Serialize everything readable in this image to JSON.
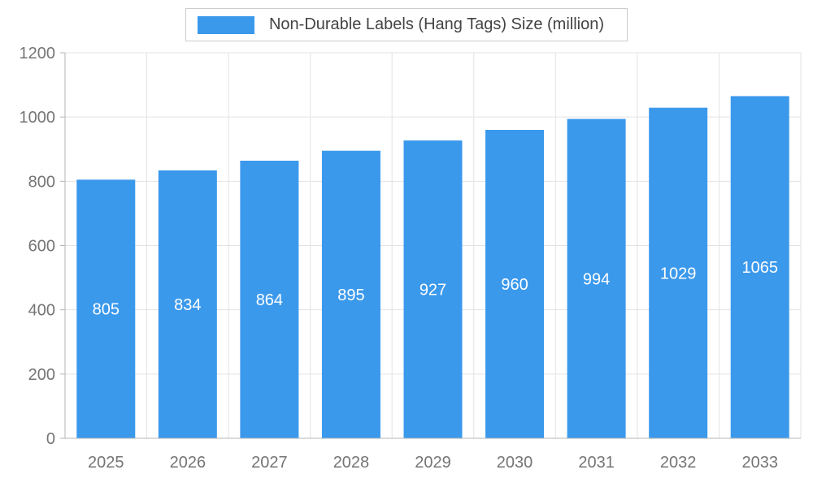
{
  "chart_data": {
    "type": "bar",
    "title": "Non-Durable Labels (Hang Tags) Size (million)",
    "categories": [
      "2025",
      "2026",
      "2027",
      "2028",
      "2029",
      "2030",
      "2031",
      "2032",
      "2033"
    ],
    "values": [
      805,
      834,
      864,
      895,
      927,
      960,
      994,
      1029,
      1065
    ],
    "xlabel": "",
    "ylabel": "",
    "ylim": [
      0,
      1200
    ],
    "yticks": [
      0,
      200,
      400,
      600,
      800,
      1000,
      1200
    ],
    "grid": true,
    "legend_position": "top",
    "colors": {
      "bar": "#3b99ec",
      "value_label": "#ffffff",
      "axis_text": "#757575",
      "grid_line": "#e3e3e3",
      "axis_line": "#b5b5b5",
      "legend_border": "#cccccc",
      "legend_text": "#434343",
      "background": "#ffffff"
    }
  }
}
